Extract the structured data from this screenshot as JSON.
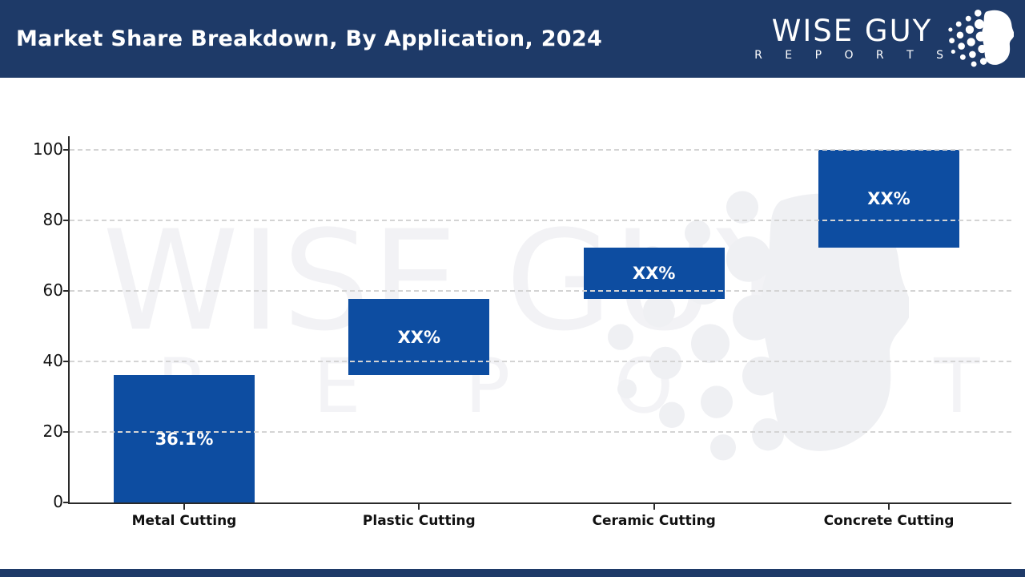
{
  "header": {
    "title": "Market Share Breakdown, By Application, 2024",
    "bg_color": "#1e3a68",
    "logo": {
      "line1": "WISE GUY",
      "line2": "R E P O R T S"
    }
  },
  "watermark": {
    "line1": "WISE GUY",
    "line2": "R E P O R T S"
  },
  "chart_data": {
    "type": "bar",
    "subtype": "floating-waterfall",
    "title": "Market Share Breakdown, By Application, 2024",
    "categories": [
      "Metal Cutting",
      "Plastic Cutting",
      "Ceramic Cutting",
      "Concrete Cutting"
    ],
    "bars": [
      {
        "category": "Metal Cutting",
        "start": 0,
        "end": 36.1,
        "label": "36.1%"
      },
      {
        "category": "Plastic Cutting",
        "start": 36.1,
        "end": 57.7,
        "label": "XX%"
      },
      {
        "category": "Ceramic Cutting",
        "start": 57.7,
        "end": 72.3,
        "label": "XX%"
      },
      {
        "category": "Concrete Cutting",
        "start": 72.3,
        "end": 100,
        "label": "XX%"
      }
    ],
    "ylim": [
      0,
      100
    ],
    "yticks": [
      0,
      20,
      40,
      60,
      80,
      100
    ],
    "bar_color": "#0d4da1",
    "value_label_color": "#ffffff",
    "grid": "horizontal-dashed",
    "legend": "none"
  }
}
